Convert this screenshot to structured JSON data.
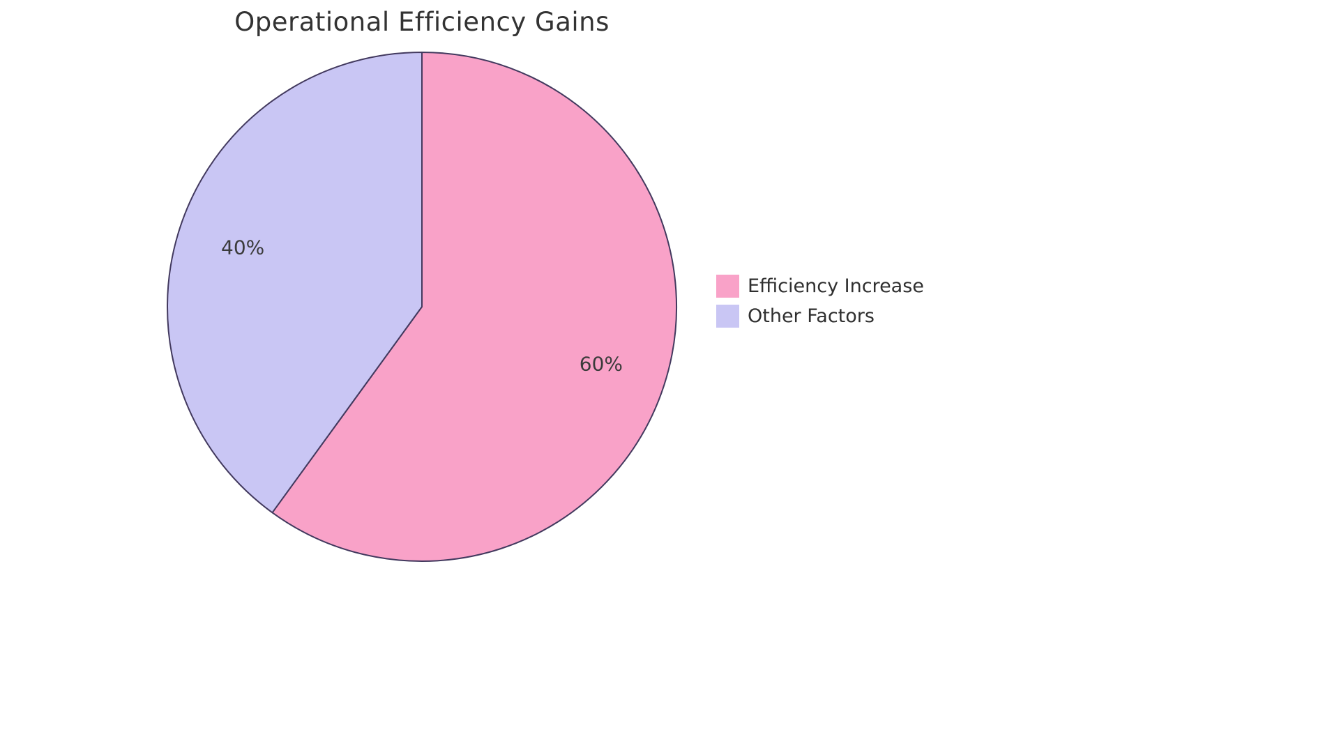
{
  "title": "Operational Efficiency Gains",
  "chart_data": {
    "type": "pie",
    "labels": [
      "Efficiency Increase",
      "Other Factors"
    ],
    "values": [
      60,
      40
    ],
    "slice_labels": [
      "60%",
      "40%"
    ],
    "colors": [
      "#F9A2C8",
      "#C9C6F4"
    ],
    "outline_color": "#42395E",
    "start_angle_deg": 0,
    "direction": "clockwise",
    "legend_position": "right",
    "title": "Operational Efficiency Gains"
  }
}
